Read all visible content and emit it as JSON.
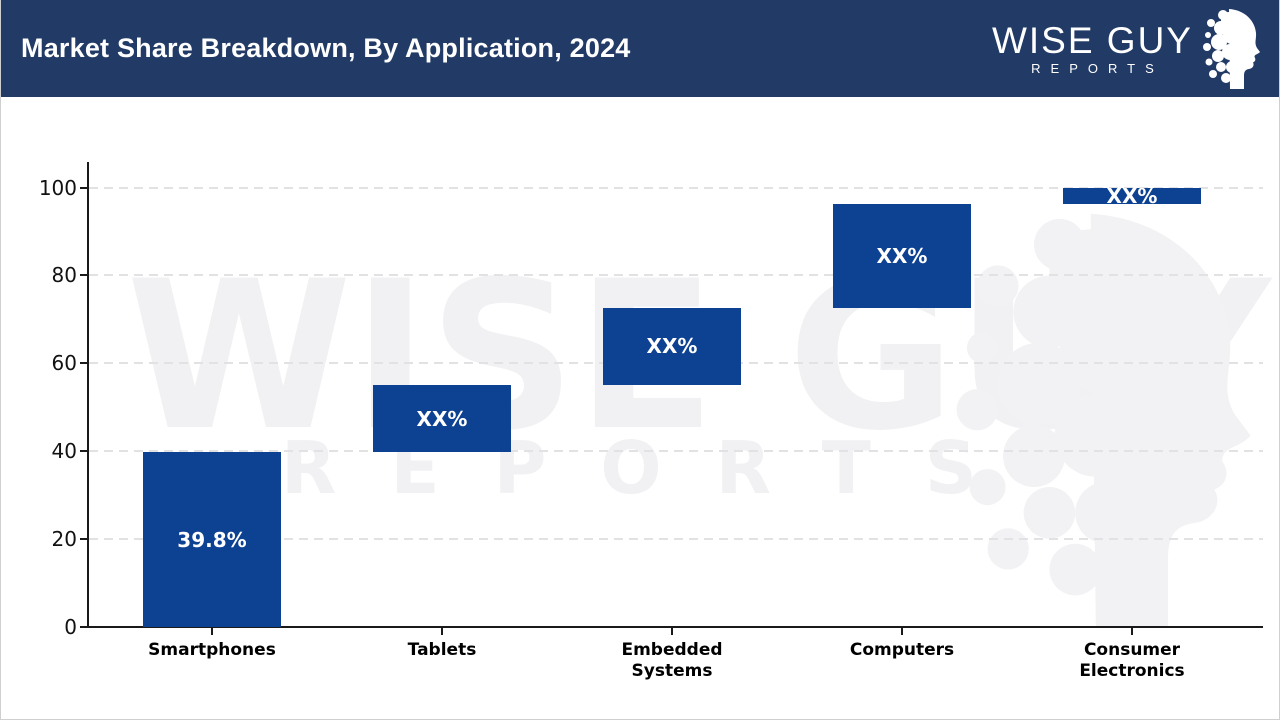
{
  "header": {
    "title": "Market Share Breakdown, By Application, 2024",
    "bg_color": "#213a66",
    "logo": {
      "line1": "WISE GUY",
      "line2": "REPORTS"
    }
  },
  "watermark": {
    "line1": "WISE GUY",
    "line2": "REPORTS"
  },
  "chart_data": {
    "type": "bar",
    "subtype": "waterfall",
    "title": "Market Share Breakdown, By Application, 2024",
    "categories": [
      "Smartphones",
      "Tablets",
      "Embedded Systems",
      "Computers",
      "Consumer Electronics"
    ],
    "segments": [
      {
        "category": "Smartphones",
        "label": "39.8%",
        "start": 0,
        "end": 39.8
      },
      {
        "category": "Tablets",
        "label": "XX%",
        "start": 39.8,
        "end": 55.0
      },
      {
        "category": "Embedded Systems",
        "label": "XX%",
        "start": 55.0,
        "end": 72.7
      },
      {
        "category": "Computers",
        "label": "XX%",
        "start": 72.7,
        "end": 96.3
      },
      {
        "category": "Consumer Electronics",
        "label": "XX%",
        "start": 96.3,
        "end": 100.0
      }
    ],
    "y_ticks": [
      0,
      20,
      40,
      60,
      80,
      100
    ],
    "ylim": [
      0,
      105
    ],
    "xlabel": "",
    "ylabel": "",
    "grid": "horizontal dashed",
    "legend": "none",
    "bar_color": "#0d4192",
    "bar_label_color": "#ffffff",
    "axis_color": "#1a1a1a",
    "gridline_color": "#e2e2e4",
    "watermark_color": "#f1f1f4"
  }
}
